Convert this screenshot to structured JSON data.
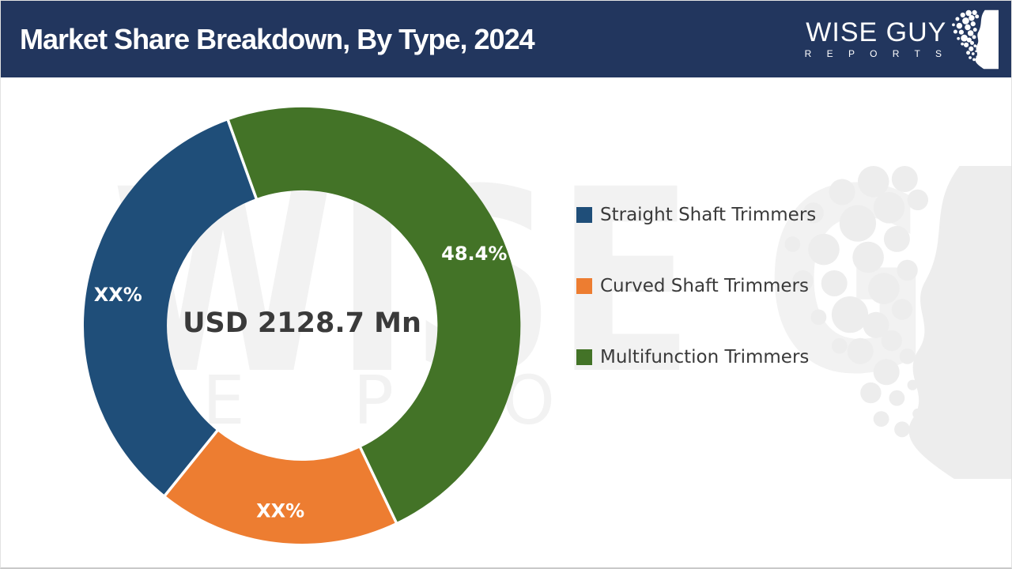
{
  "header": {
    "title": "Market Share Breakdown, By Type, 2024",
    "background_color": "#22365E",
    "logo": {
      "line1": "WISE GUY",
      "line2": "R E P O R T S"
    }
  },
  "chart_data": {
    "type": "pie",
    "subtype": "donut",
    "title": "Market Share Breakdown, By Type, 2024",
    "center_label": "USD 2128.7 Mn",
    "unit": "percent",
    "donut_inner_ratio": 0.62,
    "start_angle_deg": -19.8,
    "legend_position": "right",
    "slices": [
      {
        "name": "Multifunction Trimmers",
        "value_pct": 48.4,
        "label": "48.4%",
        "color": "#437327"
      },
      {
        "name": "Curved Shaft Trimmers",
        "value_pct": 17.9,
        "label": "XX%",
        "color": "#ED7D31"
      },
      {
        "name": "Straight Shaft Trimmers",
        "value_pct": 33.7,
        "label": "XX%",
        "color": "#1F4E79"
      }
    ],
    "legend": [
      {
        "label": "Straight Shaft Trimmers",
        "color": "#1F4E79"
      },
      {
        "label": "Curved Shaft Trimmers",
        "color": "#ED7D31"
      },
      {
        "label": "Multifunction Trimmers",
        "color": "#437327"
      }
    ]
  },
  "watermark": {
    "line1": "WISE GUY",
    "line2": "E P O"
  }
}
